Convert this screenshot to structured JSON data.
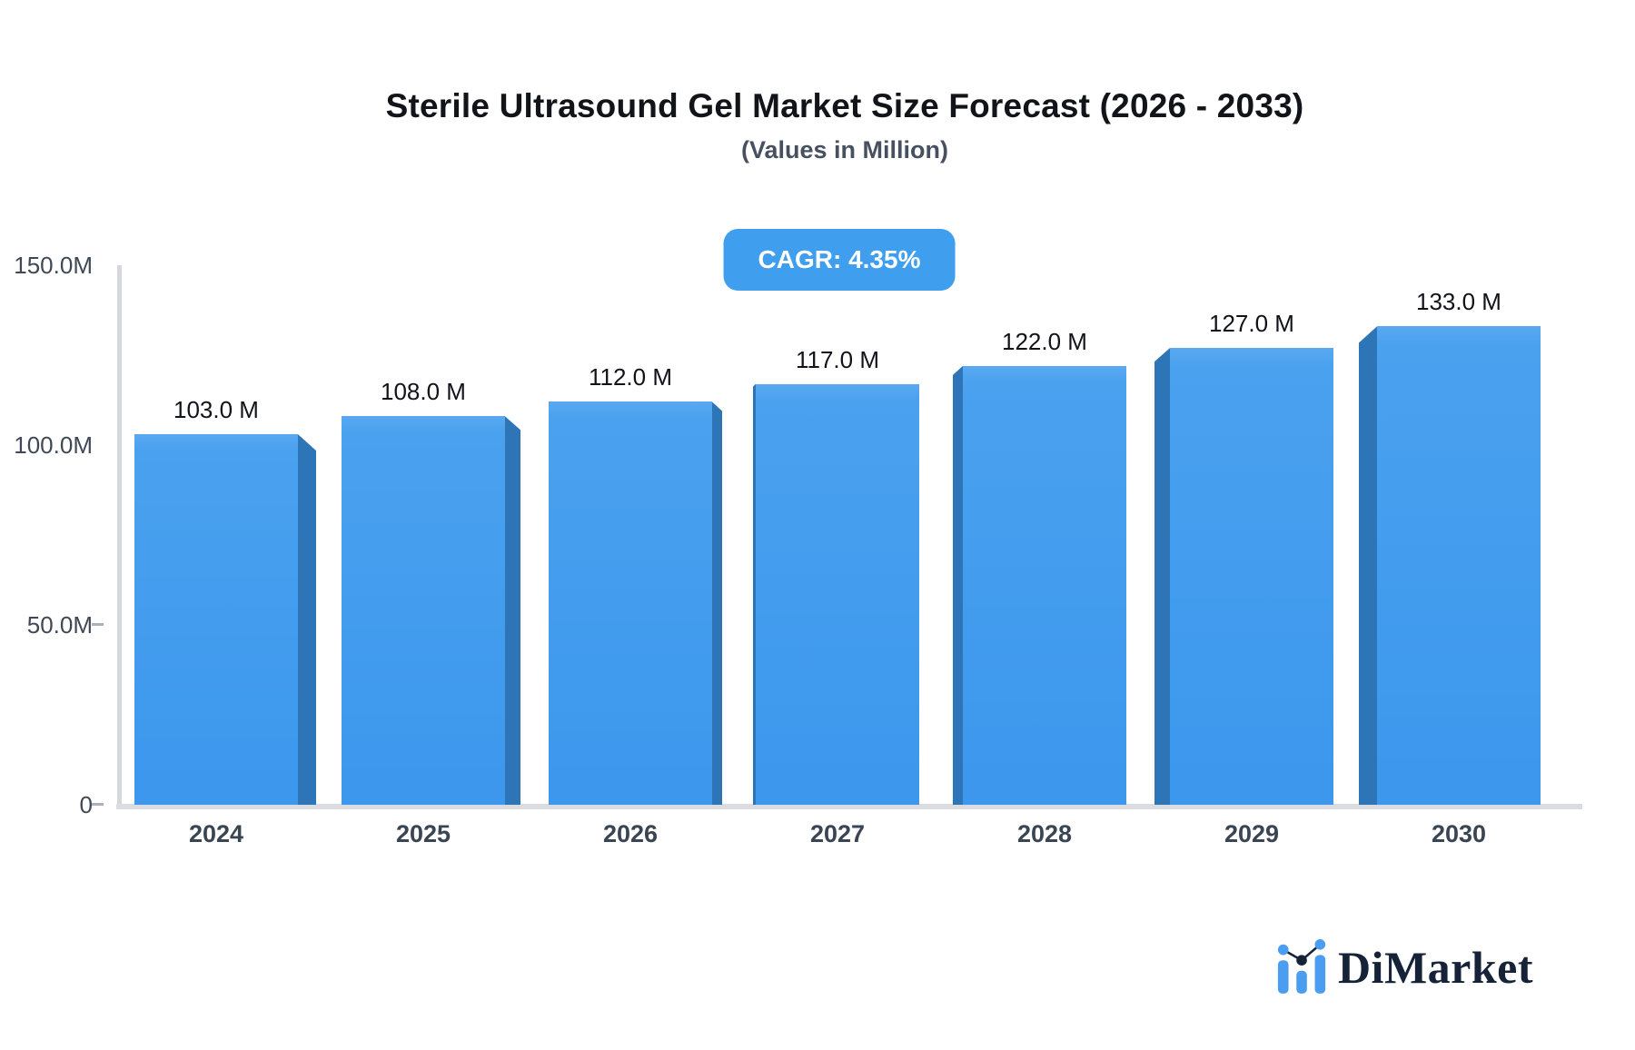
{
  "title": "Sterile Ultrasound Gel Market Size Forecast (2026 - 2033)",
  "subtitle": "(Values in Million)",
  "badge": {
    "label": "CAGR: 4.35%"
  },
  "chart_data": {
    "type": "bar",
    "title": "Sterile Ultrasound Gel Market Size Forecast (2026 - 2033)",
    "subtitle": "(Values in Million)",
    "categories": [
      "2024",
      "2025",
      "2026",
      "2027",
      "2028",
      "2029",
      "2030"
    ],
    "values": [
      103,
      108,
      112,
      117,
      122,
      127,
      133
    ],
    "bar_labels": [
      "103.0 M",
      "108.0 M",
      "112.0 M",
      "117.0 M",
      "122.0 M",
      "127.0 M",
      "133.0 M"
    ],
    "unit": "Million",
    "ylim": [
      0,
      150
    ],
    "grid": "off",
    "legend": "none",
    "y_ticks": [
      {
        "label": "150.0M",
        "value": 150,
        "dash": false
      },
      {
        "label": "100.0M",
        "value": 100,
        "dash": false
      },
      {
        "label": "50.0M",
        "value": 50,
        "dash": true
      },
      {
        "label": "0",
        "value": 0,
        "dash": true
      }
    ],
    "colors": {
      "bar_front_top": "#5aa9f1",
      "bar_front_mid": "#4aa1ee",
      "bar_front_bottom": "#3c97ed",
      "bar_side": "#2d75b6",
      "badge_bg": "#3f9eee",
      "badge_text": "#ffffff",
      "axis_line": "#d4d7dc",
      "baseline": "#d9dce1",
      "title_text": "#111418",
      "subtitle_text": "#475061",
      "value_label_text": "#101319",
      "category_label_text": "#3a4553",
      "ytick_text": "#3f4956"
    }
  },
  "logo": {
    "text": "DiMarket",
    "navy": "#152238",
    "blue": "#4a9df0"
  }
}
